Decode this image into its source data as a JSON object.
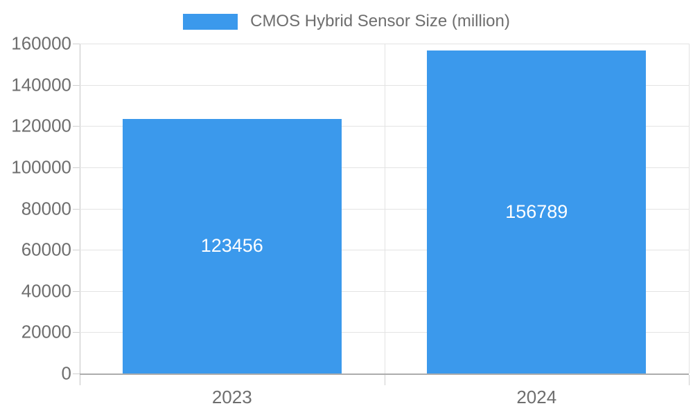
{
  "legend": {
    "position": "top",
    "label": "CMOS Hybrid Sensor Size (million)"
  },
  "colors": {
    "bar": "#3B99EC",
    "bar_label": "#FFFFFF",
    "text": "#6E6E6E",
    "grid": "#E3E3E3",
    "tick": "#CFCFCF",
    "axis_line": "#C4C4C4",
    "baseline": "#ACACAC"
  },
  "chart_data": {
    "type": "bar",
    "title": "",
    "xlabel": "",
    "ylabel": "",
    "categories": [
      "2023",
      "2024"
    ],
    "series": [
      {
        "name": "CMOS Hybrid Sensor Size (million)",
        "values": [
          123456,
          156789
        ]
      }
    ],
    "data_labels": [
      "123456",
      "156789"
    ],
    "ylim": [
      0,
      160000
    ],
    "yticks": [
      0,
      20000,
      40000,
      60000,
      80000,
      100000,
      120000,
      140000,
      160000
    ],
    "grid": "on",
    "legend_position": "top"
  }
}
